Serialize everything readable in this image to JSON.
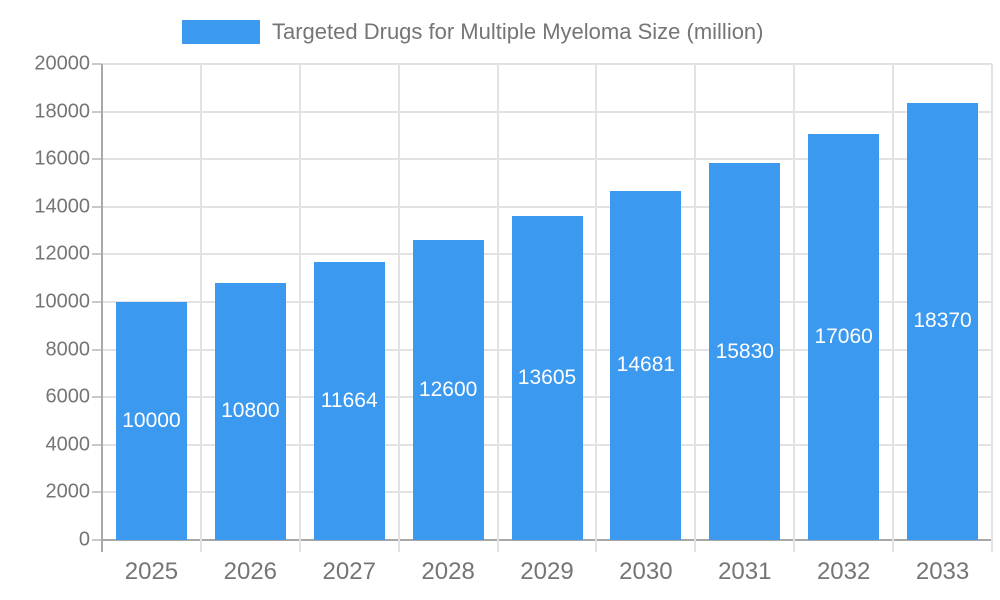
{
  "page": {
    "background_color": "#ffffff"
  },
  "legend": {
    "swatch_color": "#3B99F0"
  },
  "chart_data": {
    "type": "bar",
    "title": "Targeted Drugs for Multiple Myeloma Size (million)",
    "categories": [
      "2025",
      "2026",
      "2027",
      "2028",
      "2029",
      "2030",
      "2031",
      "2032",
      "2033"
    ],
    "values": [
      10000,
      10800,
      11664,
      12600,
      13605,
      14681,
      15830,
      17060,
      18370
    ],
    "xlabel": "",
    "ylabel": "",
    "ylim": [
      0,
      20000
    ],
    "ytick_step": 2000,
    "yticks": [
      0,
      2000,
      4000,
      6000,
      8000,
      10000,
      12000,
      14000,
      16000,
      18000,
      20000
    ],
    "grid": true,
    "legend_position": "top",
    "bar_color": "#3B99F0",
    "value_label_color": "#ffffff",
    "axis_text_color": "#757575",
    "grid_color": "#E2E2E2",
    "axis_line_color": "#A8A8A8"
  }
}
